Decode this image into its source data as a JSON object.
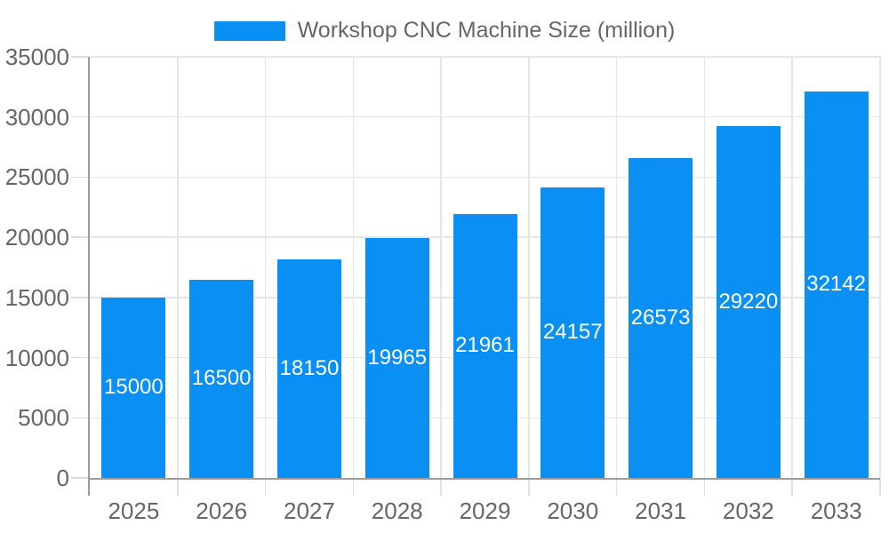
{
  "legend": {
    "label": "Workshop CNC Machine Size (million)"
  },
  "chart_data": {
    "type": "bar",
    "title": "Workshop CNC Machine Size (million)",
    "categories": [
      "2025",
      "2026",
      "2027",
      "2028",
      "2029",
      "2030",
      "2031",
      "2032",
      "2033"
    ],
    "values": [
      15000,
      16500,
      18150,
      19965,
      21961,
      24157,
      26573,
      29220,
      32142
    ],
    "bar_value_labels": [
      "15000",
      "16500",
      "18150",
      "19965",
      "21961",
      "24157",
      "26573",
      "29220",
      "32142"
    ],
    "xlabel": "",
    "ylabel": "",
    "ylim": [
      0,
      35000
    ],
    "yticks": [
      0,
      5000,
      10000,
      15000,
      20000,
      25000,
      30000,
      35000
    ],
    "grid": true,
    "legend_position": "top",
    "value_label_position": "inside-center",
    "colors": {
      "bar": "#0a90f4",
      "bar_label": "#ffffff",
      "axis_text": "#666666",
      "gridline": "#e6e6e6",
      "tick": "#dcdcdc",
      "axis_line": "#9c9c9c",
      "background": "#ffffff"
    }
  }
}
